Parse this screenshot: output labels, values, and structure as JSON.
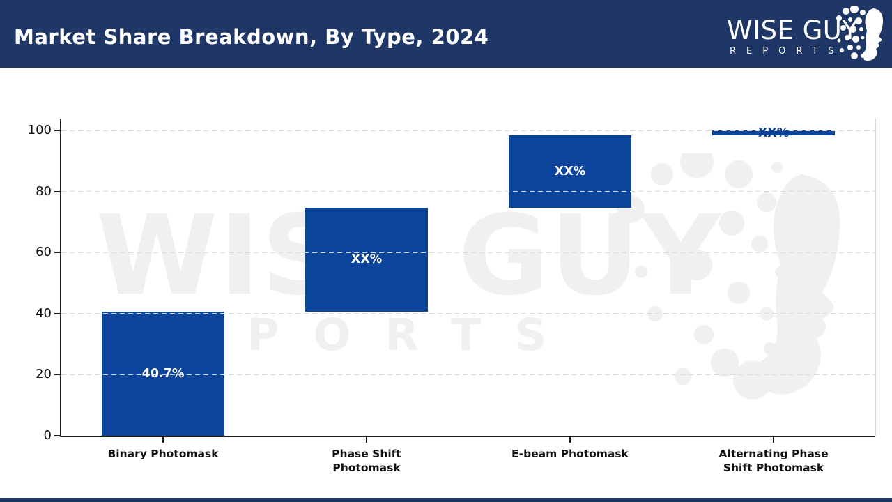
{
  "header": {
    "title": "Market Share Breakdown, By Type, 2024",
    "logo": {
      "wordmark": "WISE GUY",
      "subtext": "REPORTS"
    }
  },
  "watermark": {
    "line1": "WISE GUY",
    "line2": "REPORTS"
  },
  "colors": {
    "header_bg": "#1f3766",
    "footer_bg": "#1f3766",
    "bar": "#0c449c",
    "axis": "#1c1c1c",
    "grid": "#d8d8d8",
    "watermark": "#f0f0f0",
    "value_label_light": "#ffffff",
    "value_label_dark": "#0b3e95"
  },
  "chart_data": {
    "type": "bar",
    "subtype": "stacked-waterfall",
    "title": "Market Share Breakdown, By Type, 2024",
    "categories": [
      "Binary Photomask",
      "Phase Shift Photomask",
      "E-beam Photomask",
      "Alternating Phase Shift Photomask"
    ],
    "bars": [
      {
        "category": "Binary Photomask",
        "tick_lines": [
          "Binary Photomask"
        ],
        "start": 0,
        "end": 40.7,
        "label": "40.7%",
        "label_color": "#ffffff"
      },
      {
        "category": "Phase Shift Photomask",
        "tick_lines": [
          "Phase Shift",
          "Photomask"
        ],
        "start": 40.7,
        "end": 74.6,
        "label": "XX%",
        "label_color": "#ffffff"
      },
      {
        "category": "E-beam Photomask",
        "tick_lines": [
          "E-beam Photomask"
        ],
        "start": 74.6,
        "end": 98.4,
        "label": "XX%",
        "label_color": "#ffffff"
      },
      {
        "category": "Alternating Phase Shift Photomask",
        "tick_lines": [
          "Alternating Phase",
          "Shift Photomask"
        ],
        "start": 98.4,
        "end": 100,
        "label": "XX%",
        "label_color": "#0b3e95"
      }
    ],
    "bar_color": "#0c449c",
    "xlabel": "",
    "ylabel": "",
    "ylim": [
      0,
      100
    ],
    "yticks": [
      0,
      20,
      40,
      60,
      80,
      100
    ],
    "grid": "horizontal-dashed",
    "legend": null
  }
}
